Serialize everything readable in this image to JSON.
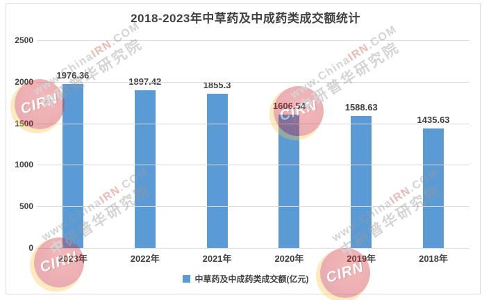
{
  "watermark": {
    "logo_text": "CIRN",
    "url_prefix": "www.China",
    "url_highlight": "IRN",
    "url_suffix": ".COM",
    "org": "中研普华研究院"
  },
  "chart_data": {
    "type": "bar",
    "title": "2018-2023年中草药及中成药类成交额统计",
    "categories": [
      "2023年",
      "2022年",
      "2021年",
      "2020年",
      "2019年",
      "2018年"
    ],
    "values": [
      1976.36,
      1897.42,
      1855.3,
      1606.54,
      1588.63,
      1435.63
    ],
    "value_labels": [
      "1976.36",
      "1897.42",
      "1855.3",
      "1606.54",
      "1588.63",
      "1435.63"
    ],
    "legend": "中草药及中成药类成交额(亿元)",
    "ylabel": "",
    "xlabel": "",
    "y_ticks": [
      0,
      500,
      1000,
      1500,
      2000,
      2500
    ],
    "ylim": [
      0,
      2500
    ],
    "grid": true,
    "legend_position": "bottom",
    "bar_color": "#5b9bd5",
    "grid_color": "#d9d9d9",
    "text_color": "#404040"
  }
}
